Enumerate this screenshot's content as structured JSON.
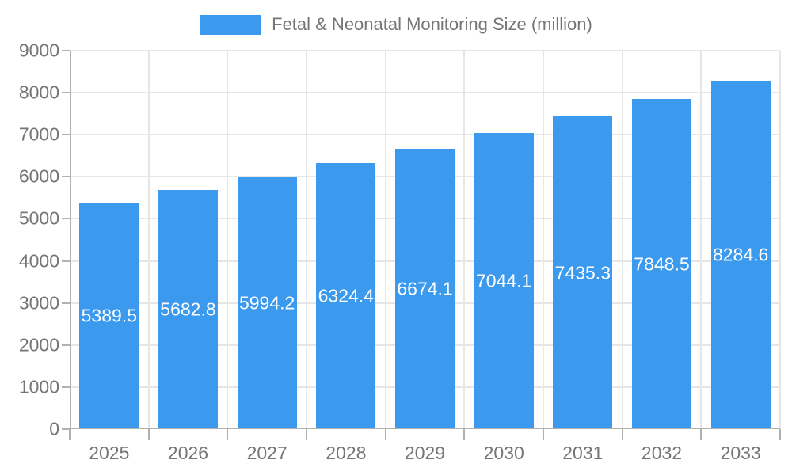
{
  "legend": {
    "label": "Fetal & Neonatal Monitoring Size (million)",
    "swatch_color": "#3b99ee"
  },
  "chart_data": {
    "type": "bar",
    "title": "Fetal & Neonatal Monitoring Size (million)",
    "categories": [
      "2025",
      "2026",
      "2027",
      "2028",
      "2029",
      "2030",
      "2031",
      "2032",
      "2033"
    ],
    "values": [
      5389.5,
      5682.8,
      5994.2,
      6324.4,
      6674.1,
      7044.1,
      7435.3,
      7848.5,
      8284.6
    ],
    "value_labels": [
      "5389.5",
      "5682.8",
      "5994.2",
      "6324.4",
      "6674.1",
      "7044.1",
      "7435.3",
      "7848.5",
      "8284.6"
    ],
    "xlabel": "",
    "ylabel": "",
    "ylim": [
      0,
      9000
    ],
    "y_ticks": [
      0,
      1000,
      2000,
      3000,
      4000,
      5000,
      6000,
      7000,
      8000,
      9000
    ],
    "grid": true,
    "legend_position": "top",
    "bar_color": "#3b99ee"
  },
  "colors": {
    "bar": "#3b99ee",
    "grid": "#e6e6e6",
    "axis": "#b0b0b0",
    "tick_label": "#757575",
    "value_label": "#ffffff",
    "background": "#ffffff"
  }
}
